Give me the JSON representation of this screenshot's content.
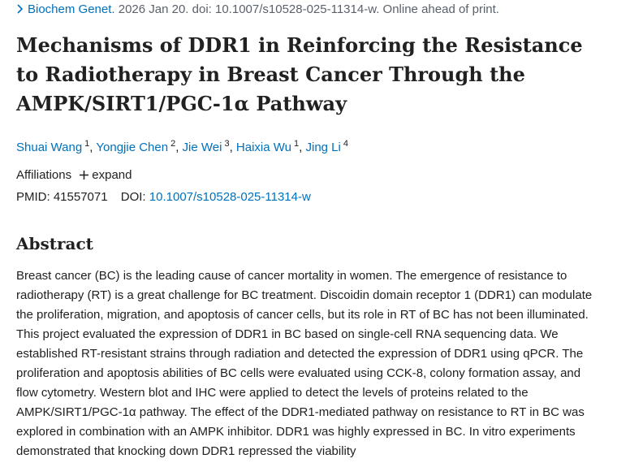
{
  "citation": {
    "journal": "Biochem Genet.",
    "details": "2026 Jan 20. doi: 10.1007/s10528-025-11314-w. Online ahead of print."
  },
  "title": "Mechanisms of DDR1 in Reinforcing the Resistance to Radiotherapy in Breast Cancer Through the AMPK/SIRT1/PGC-1α Pathway",
  "authors": [
    {
      "name": "Shuai Wang",
      "affiliation": "1"
    },
    {
      "name": "Yongjie Chen",
      "affiliation": "2"
    },
    {
      "name": "Jie Wei",
      "affiliation": "3"
    },
    {
      "name": "Haixia Wu",
      "affiliation": "1"
    },
    {
      "name": "Jing Li",
      "affiliation": "4"
    }
  ],
  "author_separator": ",",
  "affiliations": {
    "label": "Affiliations",
    "expand": "expand"
  },
  "identifiers": {
    "pmid_label": "PMID:",
    "pmid": "41557071",
    "doi_label": "DOI:",
    "doi": "10.1007/s10528-025-11314-w"
  },
  "abstract": {
    "heading": "Abstract",
    "text": "Breast cancer (BC) is the leading cause of cancer mortality in women. The emergence of resistance to radiotherapy (RT) is a great challenge for BC treatment. Discoidin domain receptor 1 (DDR1) can modulate the proliferation, migration, and apoptosis of cancer cells, but its role in RT of BC has not been illuminated. This project evaluated the expression of DDR1 in BC based on single-cell RNA sequencing data. We established RT-resistant strains through radiation and detected the expression of DDR1 using qPCR. The proliferation and apoptosis abilities of BC cells were evaluated using CCK-8, colony formation assay, and flow cytometry. Western blot and IHC were applied to detect the levels of proteins related to the AMPK/SIRT1/PGC-1α pathway. The effect of the DDR1-mediated pathway on resistance to RT in BC was explored in combination with an AMPK inhibitor. DDR1 was highly expressed in BC. In vitro experiments demonstrated that knocking down DDR1 repressed the viability"
  }
}
